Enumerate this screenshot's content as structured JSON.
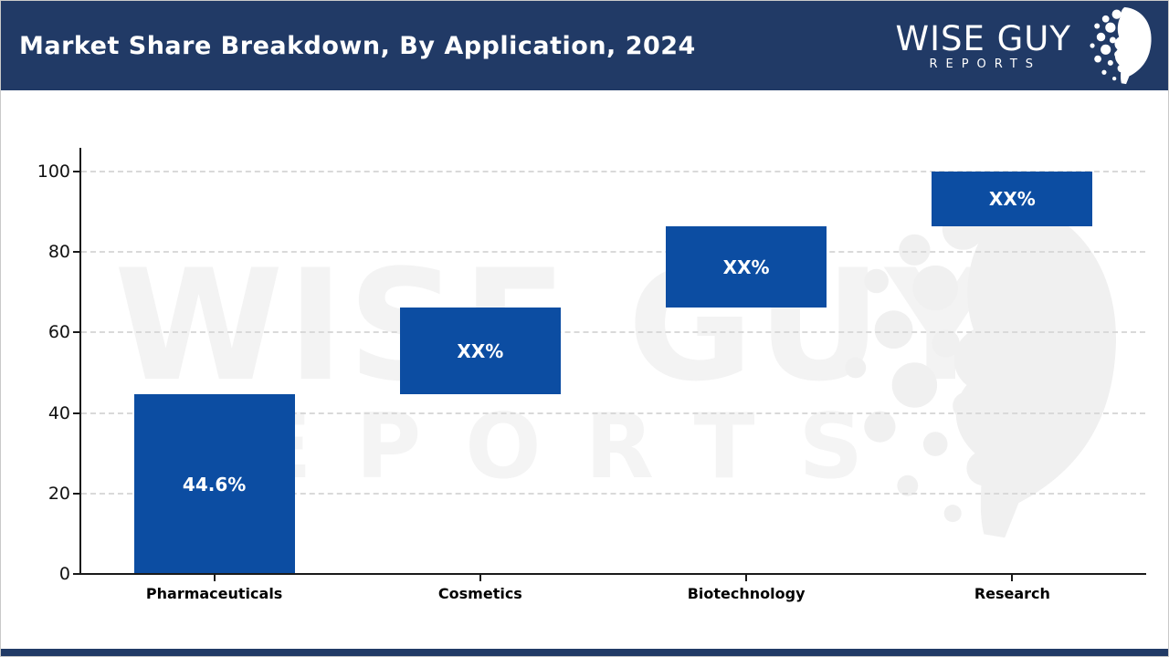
{
  "header": {
    "title": "Market Share Breakdown, By Application, 2024"
  },
  "logo": {
    "brand_line1": "WISE GUY",
    "brand_line2": "REPORTS"
  },
  "watermark": {
    "line1": "WISE GUY",
    "line2": "REPORTS"
  },
  "colors": {
    "header_bg": "#213a66",
    "footer_bg": "#213a66",
    "bar": "#0c4da2",
    "grid": "#d9d9d9",
    "axis": "#1a1a1a",
    "bar_label_text": "#ffffff",
    "watermark": "#f3f3f3",
    "canvas_bg": "#ffffff"
  },
  "chart_data": {
    "type": "bar",
    "subtype": "waterfall",
    "title": "Market Share Breakdown, By Application, 2024",
    "categories": [
      "Pharmaceuticals",
      "Cosmetics",
      "Biotechnology",
      "Research"
    ],
    "segments": [
      {
        "start": 0,
        "end": 44.6
      },
      {
        "start": 44.6,
        "end": 66.2
      },
      {
        "start": 66.2,
        "end": 86.4
      },
      {
        "start": 86.4,
        "end": 100
      }
    ],
    "bar_labels": [
      "44.6%",
      "XX%",
      "XX%",
      "XX%"
    ],
    "xlabel": "",
    "ylabel": "",
    "ylim": [
      0,
      100
    ],
    "yticks": [
      0,
      20,
      40,
      60,
      80,
      100
    ],
    "grid": "horizontal-dashed",
    "legend": "none"
  }
}
